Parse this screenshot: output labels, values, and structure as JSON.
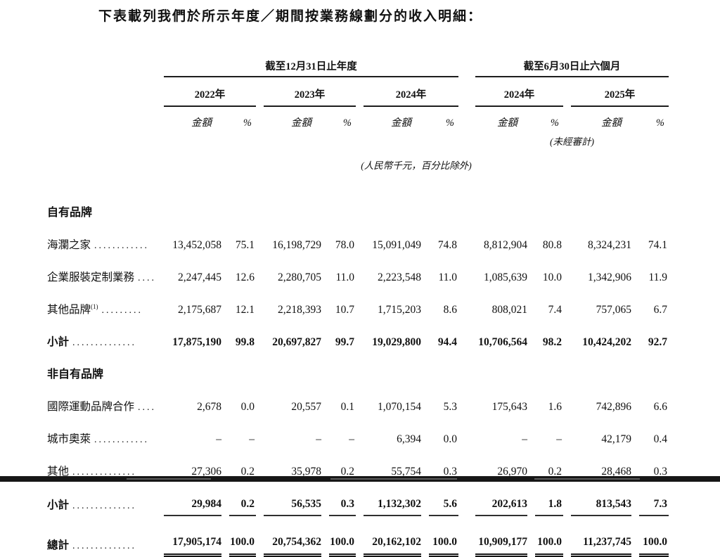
{
  "title": "下表載列我們於所示年度／期間按業務線劃分的收入明細：",
  "colors": {
    "ink": "#151515",
    "rule": "#1d1d1d",
    "bottom_bar": "#161616"
  },
  "table": {
    "group_headers": [
      {
        "label": "截至12月31日止年度"
      },
      {
        "label": "截至6月30日止六個月"
      }
    ],
    "year_headers": [
      "2022年",
      "2023年",
      "2024年",
      "2024年",
      "2025年"
    ],
    "sub_headers": {
      "amount": "金額",
      "percent": "%"
    },
    "unaudited_note": "(未經審計)",
    "unit_note": "(人民幣千元，百分比除外)",
    "rows": [
      {
        "type": "section",
        "label": "自有品牌"
      },
      {
        "type": "data",
        "label": "海瀾之家",
        "leader": "............",
        "values": [
          "13,452,058",
          "75.1",
          "16,198,729",
          "78.0",
          "15,091,049",
          "74.8",
          "8,812,904",
          "80.8",
          "8,324,231",
          "74.1"
        ]
      },
      {
        "type": "data",
        "label": "企業服裝定制業務",
        "leader": "....",
        "values": [
          "2,247,445",
          "12.6",
          "2,280,705",
          "11.0",
          "2,223,548",
          "11.0",
          "1,085,639",
          "10.0",
          "1,342,906",
          "11.9"
        ]
      },
      {
        "type": "data",
        "label": "其他品牌",
        "sup": "(1)",
        "leader": ".........",
        "values": [
          "2,175,687",
          "12.1",
          "2,218,393",
          "10.7",
          "1,715,203",
          "8.6",
          "808,021",
          "7.4",
          "757,065",
          "6.7"
        ]
      },
      {
        "type": "subtotal",
        "label": "小計",
        "leader": "..............",
        "values": [
          "17,875,190",
          "99.8",
          "20,697,827",
          "99.7",
          "19,029,800",
          "94.4",
          "10,706,564",
          "98.2",
          "10,424,202",
          "92.7"
        ]
      },
      {
        "type": "section",
        "label": "非自有品牌"
      },
      {
        "type": "data",
        "label": "國際運動品牌合作",
        "leader": "....",
        "values": [
          "2,678",
          "0.0",
          "20,557",
          "0.1",
          "1,070,154",
          "5.3",
          "175,643",
          "1.6",
          "742,896",
          "6.6"
        ]
      },
      {
        "type": "data",
        "label": "城市奧萊",
        "leader": "............",
        "values": [
          "–",
          "–",
          "–",
          "–",
          "6,394",
          "0.0",
          "–",
          "–",
          "42,179",
          "0.4"
        ]
      },
      {
        "type": "data",
        "label": "其他",
        "leader": "..............",
        "values": [
          "27,306",
          "0.2",
          "35,978",
          "0.2",
          "55,754",
          "0.3",
          "26,970",
          "0.2",
          "28,468",
          "0.3"
        ]
      },
      {
        "type": "subtotal-ruled",
        "label": "小計",
        "leader": "..............",
        "values": [
          "29,984",
          "0.2",
          "56,535",
          "0.3",
          "1,132,302",
          "5.6",
          "202,613",
          "1.8",
          "813,543",
          "7.3"
        ]
      },
      {
        "type": "total",
        "label": "總計",
        "leader": "..............",
        "values": [
          "17,905,174",
          "100.0",
          "20,754,362",
          "100.0",
          "20,162,102",
          "100.0",
          "10,909,177",
          "100.0",
          "11,237,745",
          "100.0"
        ]
      }
    ]
  }
}
